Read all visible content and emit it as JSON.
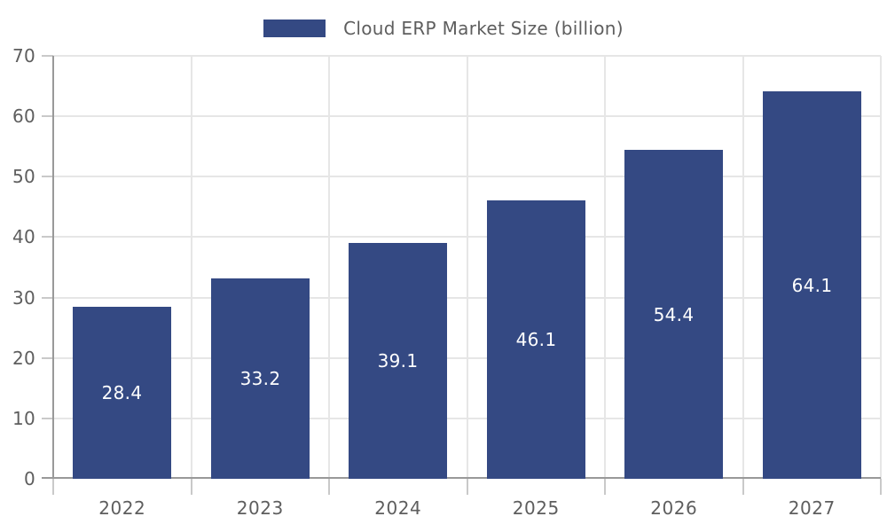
{
  "legend": {
    "label": "Cloud ERP Market Size (billion)"
  },
  "colors": {
    "bar": "#344983",
    "axis": "#999999",
    "grid": "#e6e6e6",
    "tick": "#c9c9c9",
    "text": "#5e5e5e",
    "value_text": "#ffffff",
    "background": "#ffffff"
  },
  "chart_data": {
    "type": "bar",
    "title": "Cloud ERP Market Size (billion)",
    "categories": [
      "2022",
      "2023",
      "2024",
      "2025",
      "2026",
      "2027"
    ],
    "series": [
      {
        "name": "Cloud ERP Market Size (billion)",
        "values": [
          28.4,
          33.2,
          39.1,
          46.1,
          54.4,
          64.1
        ]
      }
    ],
    "xlabel": "",
    "ylabel": "",
    "ylim": [
      0,
      70
    ],
    "yticks": [
      0,
      10,
      20,
      30,
      40,
      50,
      60,
      70
    ],
    "grid": true,
    "legend_position": "top-center",
    "bar_value_labels": "centered-white"
  }
}
